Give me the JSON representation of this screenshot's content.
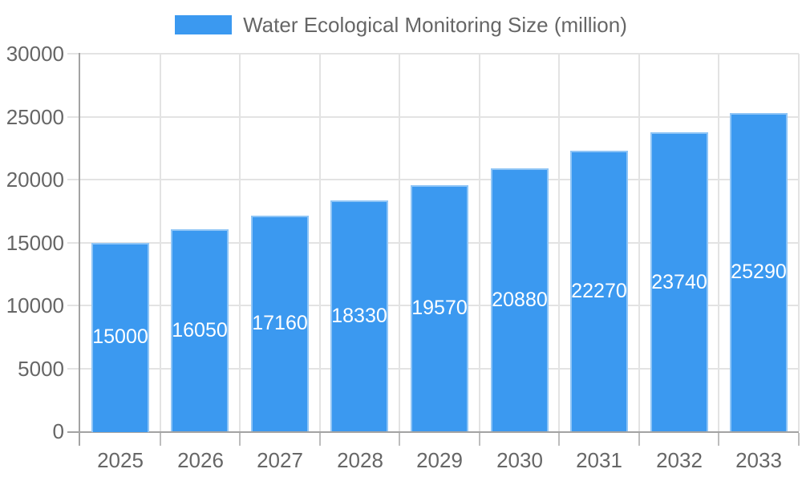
{
  "chart_data": {
    "type": "bar",
    "categories": [
      "2025",
      "2026",
      "2027",
      "2028",
      "2029",
      "2030",
      "2031",
      "2032",
      "2033"
    ],
    "series": [
      {
        "name": "Water Ecological Monitoring Size (million)",
        "values": [
          15000,
          16050,
          17160,
          18330,
          19570,
          20880,
          22270,
          23740,
          25290
        ]
      }
    ],
    "bar_value_labels": [
      "15000",
      "16050",
      "17160",
      "18330",
      "19570",
      "20880",
      "22270",
      "23740",
      "25290"
    ],
    "xlabel": "",
    "ylabel": "",
    "ylim": [
      0,
      30000
    ],
    "yticks": [
      0,
      5000,
      10000,
      15000,
      20000,
      25000,
      30000
    ],
    "ytick_labels": [
      "0",
      "5000",
      "10000",
      "15000",
      "20000",
      "25000",
      "30000"
    ],
    "legend_position": "top",
    "grid": true,
    "colors": {
      "bar": "#3B99F0",
      "bar_border": "#8FC5F6",
      "bar_label": "#FFFFFF",
      "grid": "#E3E3E3",
      "axis": "#A3A3A3",
      "tick": "#BDBDBD",
      "text": "#666666",
      "background": "#FFFFFF"
    }
  }
}
